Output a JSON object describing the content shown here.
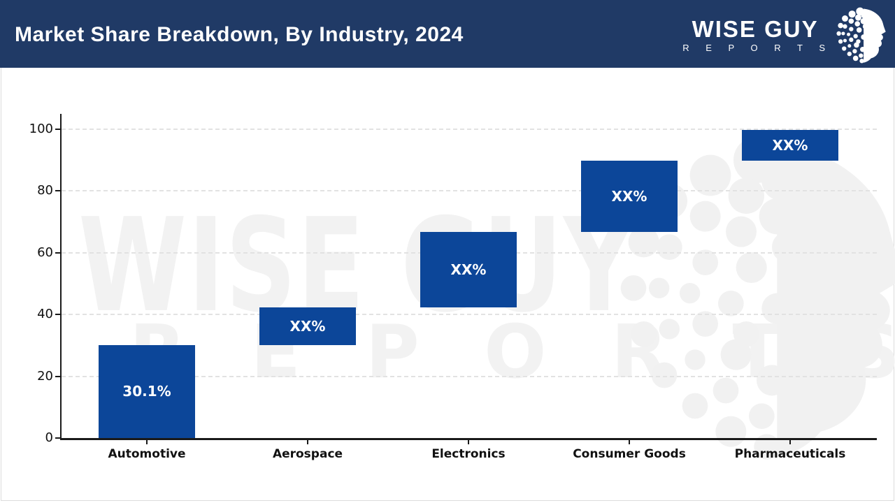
{
  "header": {
    "title": "Market Share Breakdown, By Industry, 2024",
    "brand_line1": "WISE GUY",
    "brand_line2": "R E P O R T S"
  },
  "watermark": {
    "line1": "WISE GUY",
    "line2": "R E P O R T S"
  },
  "colors": {
    "header_bg": "#203a66",
    "bar": "#0c4699",
    "grid": "#e2e2e2",
    "axis": "#1a1a1a",
    "watermark": "#f2f2f2"
  },
  "chart_data": {
    "type": "bar",
    "variant": "waterfall",
    "title": "Market Share Breakdown, By Industry, 2024",
    "categories": [
      "Automotive",
      "Aerospace",
      "Electronics",
      "Consumer Goods",
      "Pharmaceuticals"
    ],
    "segments": [
      {
        "category": "Automotive",
        "start": 0,
        "end": 30.1,
        "label": "30.1%"
      },
      {
        "category": "Aerospace",
        "start": 30.1,
        "end": 42.2,
        "label": "XX%"
      },
      {
        "category": "Electronics",
        "start": 42.2,
        "end": 66.8,
        "label": "XX%"
      },
      {
        "category": "Consumer Goods",
        "start": 66.8,
        "end": 89.8,
        "label": "XX%"
      },
      {
        "category": "Pharmaceuticals",
        "start": 89.8,
        "end": 99.8,
        "label": "XX%"
      }
    ],
    "values_masked_as": "XX%",
    "xlabel": "",
    "ylabel": "",
    "ylim": [
      0,
      105
    ],
    "yticks": [
      0,
      20,
      40,
      60,
      80,
      100
    ],
    "grid": "horizontal dashed",
    "legend": "none",
    "bar_color": "#0c4699",
    "bar_label_color": "#ffffff"
  }
}
